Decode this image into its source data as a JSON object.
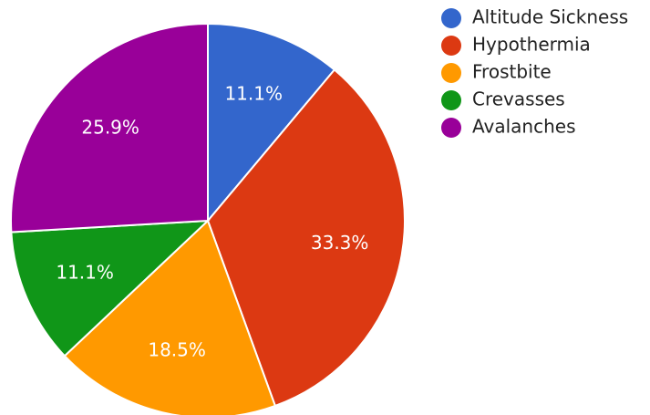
{
  "chart_data": {
    "type": "pie",
    "title": "",
    "legend_position": "right",
    "slices": [
      {
        "label": "Altitude Sickness",
        "value": 11.1,
        "display": "11.1%",
        "color": "#3366cc"
      },
      {
        "label": "Hypothermia",
        "value": 33.3,
        "display": "33.3%",
        "color": "#dc3912"
      },
      {
        "label": "Frostbite",
        "value": 18.5,
        "display": "18.5%",
        "color": "#ff9900"
      },
      {
        "label": "Crevasses",
        "value": 11.1,
        "display": "11.1%",
        "color": "#109618"
      },
      {
        "label": "Avalanches",
        "value": 25.9,
        "display": "25.9%",
        "color": "#990099"
      }
    ]
  }
}
